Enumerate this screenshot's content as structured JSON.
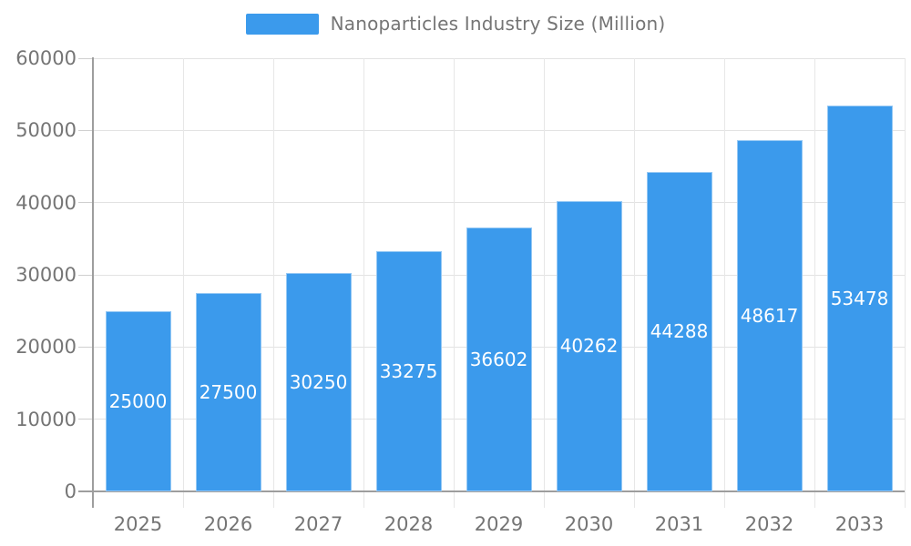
{
  "chart_data": {
    "type": "bar",
    "title": "Nanoparticles Industry Size (Million)",
    "legend_position": "top",
    "categories": [
      "2025",
      "2026",
      "2027",
      "2028",
      "2029",
      "2030",
      "2031",
      "2032",
      "2033"
    ],
    "series": [
      {
        "name": "Nanoparticles Industry Size (Million)",
        "values": [
          25000,
          27500,
          30250,
          33275,
          36602,
          40262,
          44288,
          48617,
          53478
        ]
      }
    ],
    "data_labels": [
      "25000",
      "27500",
      "30250",
      "33275",
      "36602",
      "40262",
      "44288",
      "48617",
      "53478"
    ],
    "xlabel": "",
    "ylabel": "",
    "ylim": [
      0,
      60000
    ],
    "yticks": [
      0,
      10000,
      20000,
      30000,
      40000,
      50000,
      60000
    ],
    "ytick_labels": [
      "0",
      "10000",
      "20000",
      "30000",
      "40000",
      "50000",
      "60000"
    ],
    "grid": true,
    "colors": {
      "bar": "#3B9AEC",
      "bar_label_text": "#ffffff",
      "axis_text": "#757575",
      "legend_text": "#757575",
      "gridline": "#e2e2e2",
      "axis_line": "#9e9e9e"
    }
  }
}
